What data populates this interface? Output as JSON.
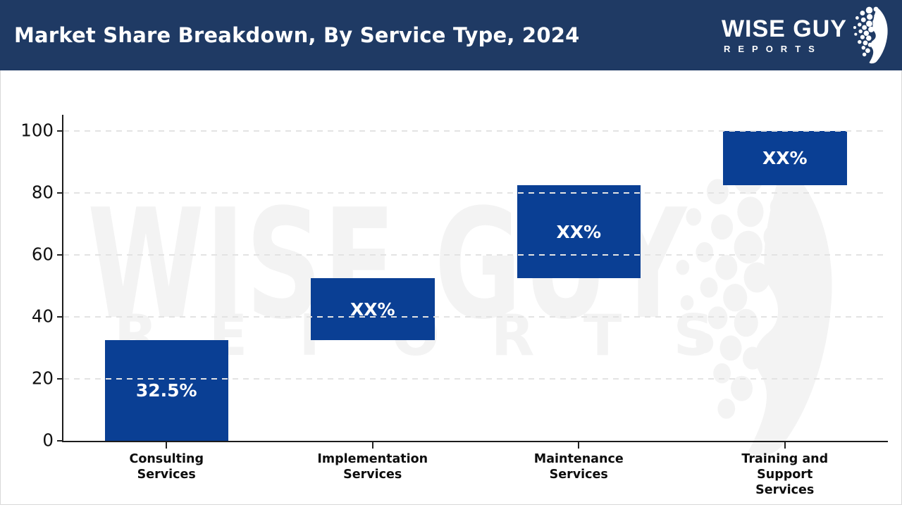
{
  "header": {
    "title": "Market Share Breakdown, By Service Type, 2024",
    "logo": {
      "line1": "WISE GUY",
      "line2": "REPORTS"
    }
  },
  "watermark": {
    "line1": "WISE GUY",
    "line2": "REPORTS"
  },
  "colors": {
    "header_bg": "#1f3a64",
    "bar": "#0a3f94",
    "grid": "#e3e3e3",
    "watermark": "#f3f3f3",
    "axis": "#1c1c1c",
    "bar_label_text": "#ffffff"
  },
  "chart_data": {
    "type": "bar",
    "subtype": "waterfall",
    "title": "Market Share Breakdown, By Service Type, 2024",
    "categories": [
      "Consulting\nServices",
      "Implementation\nServices",
      "Maintenance\nServices",
      "Training and\nSupport Services"
    ],
    "series": [
      {
        "name": "Market Share (%)",
        "segments": [
          {
            "category": "Consulting Services",
            "start": 0,
            "end": 32.5,
            "label": "32.5%"
          },
          {
            "category": "Implementation Services",
            "start": 32.5,
            "end": 52.5,
            "label": "XX%"
          },
          {
            "category": "Maintenance Services",
            "start": 52.5,
            "end": 82.5,
            "label": "XX%"
          },
          {
            "category": "Training and Support Services",
            "start": 82.5,
            "end": 100,
            "label": "XX%"
          }
        ]
      }
    ],
    "xlabel": "",
    "ylabel": "",
    "ylim": [
      0,
      100
    ],
    "yticks": [
      0,
      20,
      40,
      60,
      80,
      100
    ],
    "grid": "horizontal-dashed",
    "legend": "none"
  }
}
